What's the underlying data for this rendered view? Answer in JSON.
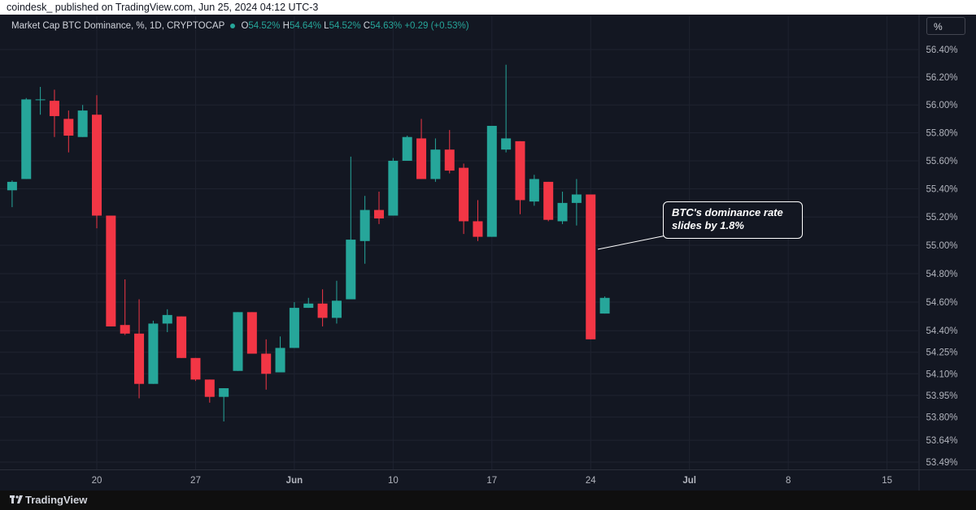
{
  "publisher_line": "coindesk_ published on TradingView.com, Jun 25, 2024 04:12 UTC-3",
  "legend": {
    "symbol": "Market Cap BTC Dominance, %, 1D, CRYPTOCAP",
    "open_label": "O",
    "open": "54.52%",
    "high_label": "H",
    "high": "54.64%",
    "low_label": "L",
    "low": "54.52%",
    "close_label": "C",
    "close": "54.63%",
    "change": "+0.29 (+0.53%)"
  },
  "scale_button": "%",
  "annotation": "BTC's dominance rate\nslides by 1.8%",
  "footer_brand": "TradingView",
  "colors": {
    "up": "#26a69a",
    "down": "#f23645",
    "background": "#131722",
    "grid": "#1f2330",
    "text": "#b2b5be"
  },
  "chart_data": {
    "type": "candlestick",
    "scale": "log",
    "ylim": [
      53.44,
      56.5
    ],
    "y_ticks": [
      "56.40%",
      "56.20%",
      "56.00%",
      "55.80%",
      "55.60%",
      "55.40%",
      "55.20%",
      "55.00%",
      "54.80%",
      "54.60%",
      "54.40%",
      "54.25%",
      "54.10%",
      "53.95%",
      "53.80%",
      "53.64%",
      "53.49%"
    ],
    "x_ticks": [
      "20",
      "27",
      "Jun",
      "10",
      "17",
      "24",
      "Jul",
      "8",
      "15"
    ],
    "candles": [
      {
        "date": "2024-05-14",
        "o": 55.39,
        "h": 55.46,
        "l": 55.27,
        "c": 55.45
      },
      {
        "date": "2024-05-15",
        "o": 55.47,
        "h": 56.05,
        "l": 55.47,
        "c": 56.04
      },
      {
        "date": "2024-05-16",
        "o": 56.04,
        "h": 56.13,
        "l": 55.93,
        "c": 56.04
      },
      {
        "date": "2024-05-17",
        "o": 56.03,
        "h": 56.11,
        "l": 55.77,
        "c": 55.92
      },
      {
        "date": "2024-05-18",
        "o": 55.9,
        "h": 55.96,
        "l": 55.66,
        "c": 55.78
      },
      {
        "date": "2024-05-19",
        "o": 55.77,
        "h": 56.0,
        "l": 55.77,
        "c": 55.96
      },
      {
        "date": "2024-05-20",
        "o": 55.93,
        "h": 56.07,
        "l": 55.12,
        "c": 55.21
      },
      {
        "date": "2024-05-21",
        "o": 55.21,
        "h": 55.21,
        "l": 54.43,
        "c": 54.43
      },
      {
        "date": "2024-05-22",
        "o": 54.44,
        "h": 54.76,
        "l": 54.37,
        "c": 54.38
      },
      {
        "date": "2024-05-23",
        "o": 54.38,
        "h": 54.62,
        "l": 53.93,
        "c": 54.03
      },
      {
        "date": "2024-05-24",
        "o": 54.03,
        "h": 54.47,
        "l": 54.03,
        "c": 54.45
      },
      {
        "date": "2024-05-25",
        "o": 54.45,
        "h": 54.55,
        "l": 54.39,
        "c": 54.51
      },
      {
        "date": "2024-05-26",
        "o": 54.5,
        "h": 54.5,
        "l": 54.21,
        "c": 54.21
      },
      {
        "date": "2024-05-27",
        "o": 54.21,
        "h": 54.21,
        "l": 54.05,
        "c": 54.06
      },
      {
        "date": "2024-05-28",
        "o": 54.06,
        "h": 54.06,
        "l": 53.9,
        "c": 53.94
      },
      {
        "date": "2024-05-29",
        "o": 53.94,
        "h": 54.0,
        "l": 53.77,
        "c": 54.0
      },
      {
        "date": "2024-05-30",
        "o": 54.12,
        "h": 54.53,
        "l": 54.12,
        "c": 54.53
      },
      {
        "date": "2024-05-31",
        "o": 54.53,
        "h": 54.53,
        "l": 54.24,
        "c": 54.24
      },
      {
        "date": "2024-06-01",
        "o": 54.24,
        "h": 54.34,
        "l": 53.99,
        "c": 54.1
      },
      {
        "date": "2024-06-02",
        "o": 54.11,
        "h": 54.36,
        "l": 54.11,
        "c": 54.28
      },
      {
        "date": "2024-06-03",
        "o": 54.28,
        "h": 54.6,
        "l": 54.28,
        "c": 54.56
      },
      {
        "date": "2024-06-04",
        "o": 54.56,
        "h": 54.63,
        "l": 54.56,
        "c": 54.59
      },
      {
        "date": "2024-06-05",
        "o": 54.59,
        "h": 54.69,
        "l": 54.43,
        "c": 54.49
      },
      {
        "date": "2024-06-06",
        "o": 54.49,
        "h": 54.75,
        "l": 54.45,
        "c": 54.61
      },
      {
        "date": "2024-06-07",
        "o": 54.62,
        "h": 55.63,
        "l": 54.62,
        "c": 55.04
      },
      {
        "date": "2024-06-08",
        "o": 55.03,
        "h": 55.35,
        "l": 54.87,
        "c": 55.25
      },
      {
        "date": "2024-06-09",
        "o": 55.25,
        "h": 55.38,
        "l": 55.15,
        "c": 55.19
      },
      {
        "date": "2024-06-10",
        "o": 55.21,
        "h": 55.62,
        "l": 55.21,
        "c": 55.6
      },
      {
        "date": "2024-06-11",
        "o": 55.6,
        "h": 55.78,
        "l": 55.6,
        "c": 55.77
      },
      {
        "date": "2024-06-12",
        "o": 55.76,
        "h": 55.9,
        "l": 55.47,
        "c": 55.47
      },
      {
        "date": "2024-06-13",
        "o": 55.47,
        "h": 55.76,
        "l": 55.45,
        "c": 55.68
      },
      {
        "date": "2024-06-14",
        "o": 55.68,
        "h": 55.82,
        "l": 55.51,
        "c": 55.53
      },
      {
        "date": "2024-06-15",
        "o": 55.55,
        "h": 55.58,
        "l": 55.08,
        "c": 55.17
      },
      {
        "date": "2024-06-16",
        "o": 55.17,
        "h": 55.32,
        "l": 55.03,
        "c": 55.06
      },
      {
        "date": "2024-06-17",
        "o": 55.06,
        "h": 55.85,
        "l": 55.06,
        "c": 55.85
      },
      {
        "date": "2024-06-18",
        "o": 55.68,
        "h": 56.29,
        "l": 55.66,
        "c": 55.76
      },
      {
        "date": "2024-06-19",
        "o": 55.74,
        "h": 55.74,
        "l": 55.22,
        "c": 55.32
      },
      {
        "date": "2024-06-20",
        "o": 55.31,
        "h": 55.5,
        "l": 55.28,
        "c": 55.47
      },
      {
        "date": "2024-06-21",
        "o": 55.45,
        "h": 55.45,
        "l": 55.17,
        "c": 55.18
      },
      {
        "date": "2024-06-22",
        "o": 55.17,
        "h": 55.38,
        "l": 55.15,
        "c": 55.3
      },
      {
        "date": "2024-06-23",
        "o": 55.3,
        "h": 55.47,
        "l": 55.14,
        "c": 55.36
      },
      {
        "date": "2024-06-24",
        "o": 55.36,
        "h": 55.36,
        "l": 54.34,
        "c": 54.34
      },
      {
        "date": "2024-06-25",
        "o": 54.52,
        "h": 54.64,
        "l": 54.52,
        "c": 54.63
      }
    ]
  }
}
